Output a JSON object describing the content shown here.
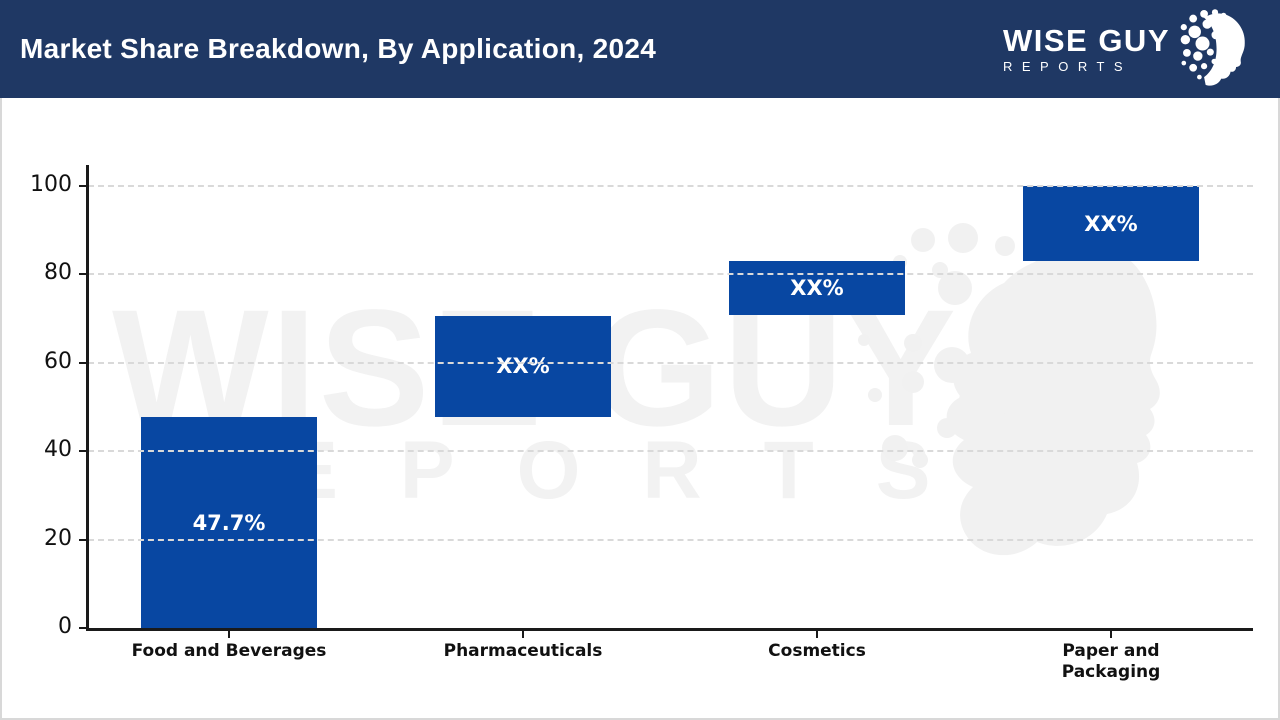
{
  "header": {
    "title": "Market Share Breakdown, By Application, 2024",
    "bg_color": "#1F3864",
    "logo": {
      "wordmark": "WISE GUY",
      "subtext": "REPORTS"
    }
  },
  "watermark": {
    "wordmark": "WISE GUY",
    "subtext": "REPORTS"
  },
  "chart_data": {
    "type": "bar",
    "subtype": "floating-waterfall",
    "title": "Market Share Breakdown, By Application, 2024",
    "categories": [
      "Food and Beverages",
      "Pharmaceuticals",
      "Cosmetics",
      "Paper and Packaging"
    ],
    "category_label_lines": [
      [
        "Food and Beverages"
      ],
      [
        "Pharmaceuticals"
      ],
      [
        "Cosmetics"
      ],
      [
        "Paper and",
        "Packaging"
      ]
    ],
    "series": [
      {
        "name": "Market share (%)",
        "segments": [
          {
            "category": "Food and Beverages",
            "start": 0,
            "end": 47.7,
            "label": "47.7%"
          },
          {
            "category": "Pharmaceuticals",
            "start": 47.7,
            "end": 70.7,
            "label": "XX%"
          },
          {
            "category": "Cosmetics",
            "start": 70.7,
            "end": 83.0,
            "label": "XX%"
          },
          {
            "category": "Paper and Packaging",
            "start": 83.0,
            "end": 100.0,
            "label": "XX%"
          }
        ]
      }
    ],
    "ylim": [
      0,
      100
    ],
    "yticks": [
      0,
      20,
      40,
      60,
      80,
      100
    ],
    "grid": "horizontal-dashed",
    "legend": "none",
    "bar_color": "#0847A2",
    "bar_label_color": "#FFFFFF",
    "axis_color": "#1A1A1A"
  }
}
